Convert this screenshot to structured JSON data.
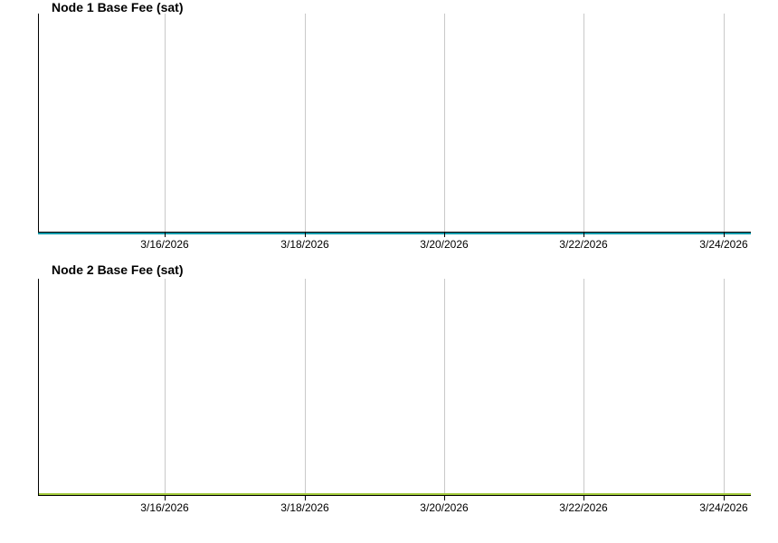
{
  "charts": [
    {
      "title": "Node 1 Base Fee (sat)",
      "line_color": "#0e9aaa",
      "axis_color": "#000000",
      "grid_color": "#c9c9c9",
      "x_ticks": [
        "3/16/2026",
        "3/18/2026",
        "3/20/2026",
        "3/22/2026",
        "3/24/2026"
      ]
    },
    {
      "title": "Node 2 Base Fee (sat)",
      "line_color": "#a0c838",
      "axis_color": "#000000",
      "grid_color": "#c9c9c9",
      "x_ticks": [
        "3/16/2026",
        "3/18/2026",
        "3/20/2026",
        "3/22/2026",
        "3/24/2026"
      ]
    }
  ],
  "chart_data": [
    {
      "type": "line",
      "title": "Node 1 Base Fee (sat)",
      "xlabel": "",
      "ylabel": "",
      "x": [
        "3/16/2026",
        "3/18/2026",
        "3/20/2026",
        "3/22/2026",
        "3/24/2026"
      ],
      "xlim": [
        "3/14/2026",
        "3/24/2026"
      ],
      "series": [
        {
          "name": "Node 1 Base Fee (sat)",
          "values": [
            0,
            0,
            0,
            0,
            0
          ],
          "color": "#0e9aaa",
          "shape": "flat line at the bottom axis (constant 0) across the full date range"
        }
      ],
      "grid": "vertical gridlines only, at each x tick",
      "legend": "none",
      "y_axis_labels": "none visible"
    },
    {
      "type": "line",
      "title": "Node 2 Base Fee (sat)",
      "xlabel": "",
      "ylabel": "",
      "x": [
        "3/16/2026",
        "3/18/2026",
        "3/20/2026",
        "3/22/2026",
        "3/24/2026"
      ],
      "xlim": [
        "3/14/2026",
        "3/24/2026"
      ],
      "series": [
        {
          "name": "Node 2 Base Fee (sat)",
          "values": [
            0,
            0,
            0,
            0,
            0
          ],
          "color": "#a0c838",
          "shape": "flat line at the bottom axis (constant 0) across the full date range"
        }
      ],
      "grid": "vertical gridlines only, at each x tick",
      "legend": "none",
      "y_axis_labels": "none visible"
    }
  ]
}
